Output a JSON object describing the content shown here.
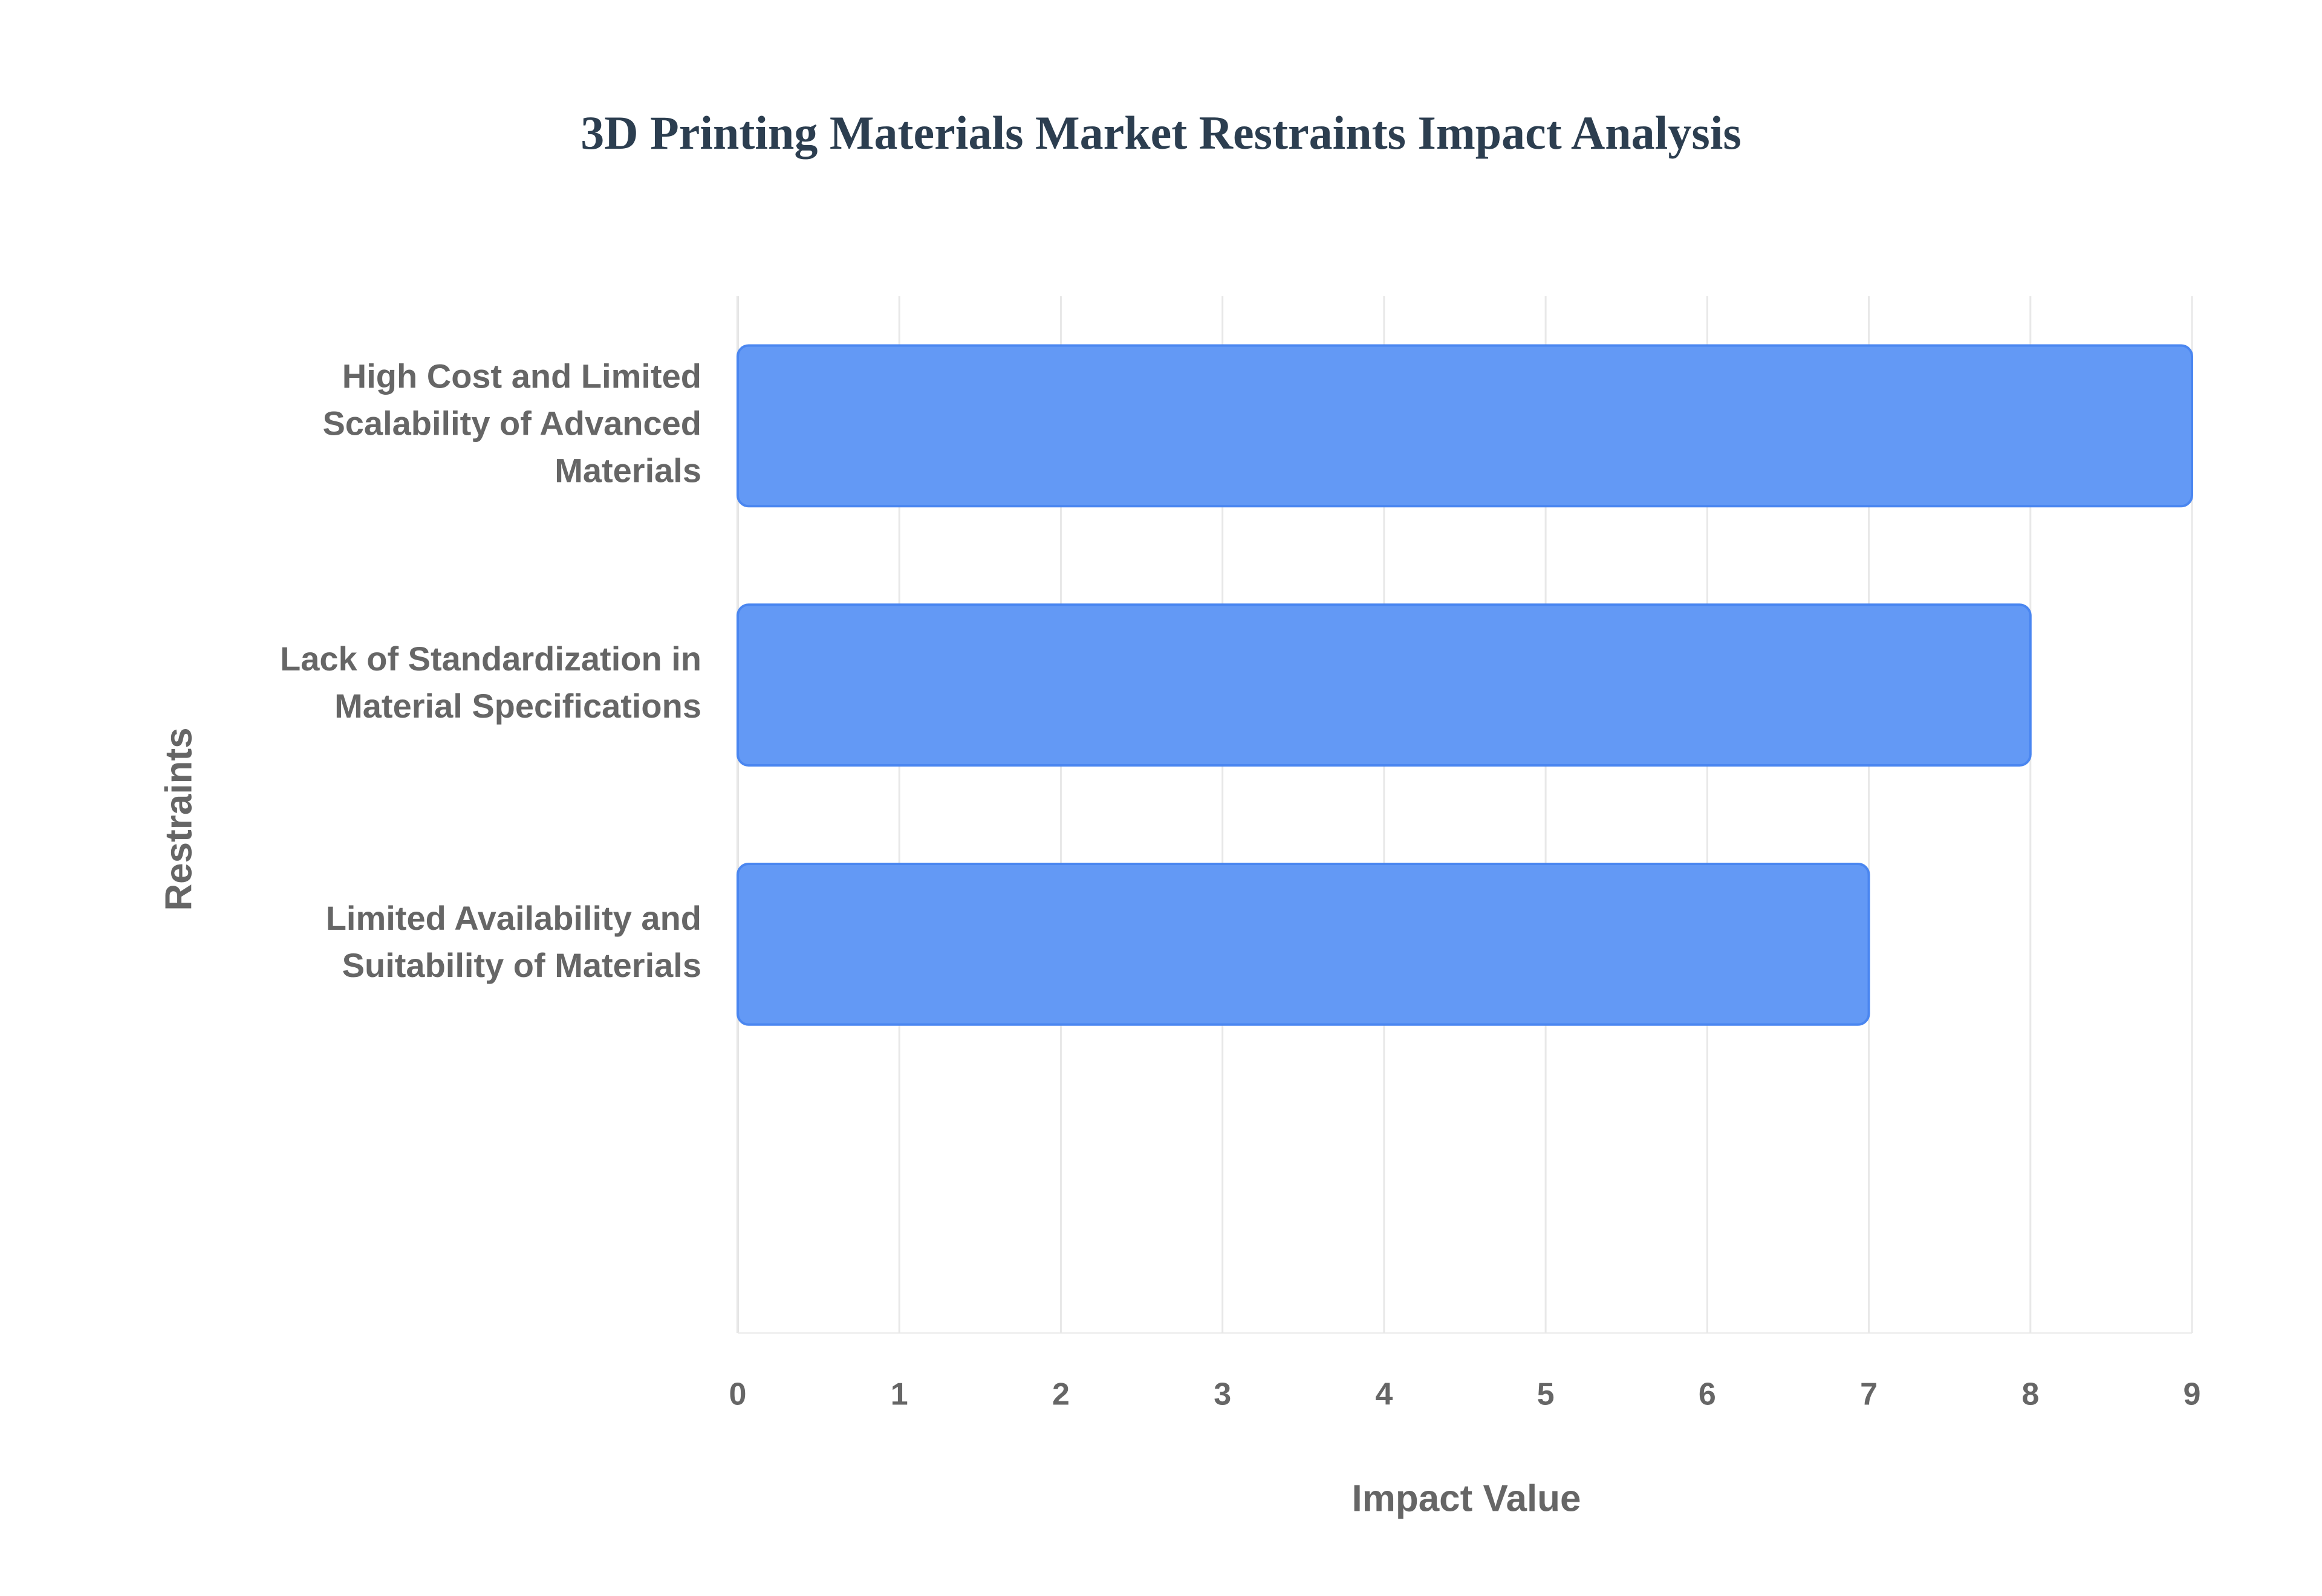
{
  "chart_data": {
    "type": "bar",
    "orientation": "horizontal",
    "title": "3D Printing Materials Market Restraints Impact Analysis",
    "categories": [
      "High Cost and Limited Scalability of Advanced Materials",
      "Lack of Standardization in Material Specifications",
      "Limited Availability and Suitability of Materials",
      null
    ],
    "values": [
      9,
      8,
      7,
      null
    ],
    "color": "#6399f5",
    "xlabel": "Impact Value",
    "ylabel": "Restraints",
    "xlim": [
      0,
      9
    ],
    "xticks": [
      0,
      1,
      2,
      3,
      4,
      5,
      6,
      7,
      8,
      9
    ],
    "grid": true
  }
}
